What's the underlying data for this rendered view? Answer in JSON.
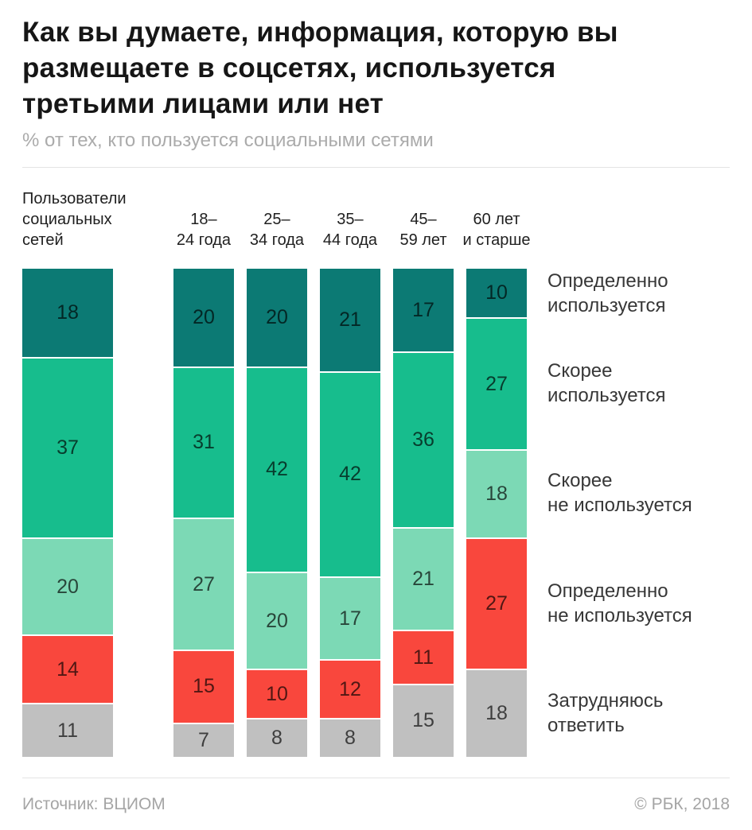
{
  "header": {
    "title": "Как вы думаете, информация, которую вы\nразмещаете в соцсетях, используется\nтретьими лицами или нет",
    "subtitle": "% от тех, кто пользуется социальными сетями"
  },
  "columns": {
    "first_header": "Пользователи\nсоциальных\nсетей",
    "age_headers": [
      "18–\n24 года",
      "25–\n34 года",
      "35–\n44 года",
      "45–\n59 лет",
      "60 лет\nи старше"
    ]
  },
  "legend": {
    "labels": [
      "Определенно\nиспользуется",
      "Скорее\nиспользуется",
      "Скорее\nне используется",
      "Определенно\nне используется",
      "Затрудняюсь\nответить"
    ]
  },
  "chart_data": {
    "type": "bar",
    "stacked": true,
    "orientation": "vertical",
    "unit": "%",
    "title": "Как вы думаете, информация, которую вы размещаете в соцсетях, используется третьими лицами или нет",
    "subtitle": "% от тех, кто пользуется социальными сетями",
    "categories": [
      "Пользователи социальных сетей",
      "18–24 года",
      "25–34 года",
      "35–44 года",
      "45–59 лет",
      "60 лет и старше"
    ],
    "series": [
      {
        "name": "Определенно используется",
        "color": "#0c7a74",
        "values": [
          18,
          20,
          20,
          21,
          17,
          10
        ]
      },
      {
        "name": "Скорее используется",
        "color": "#17bd8d",
        "values": [
          37,
          31,
          42,
          42,
          36,
          27
        ]
      },
      {
        "name": "Скорее не используется",
        "color": "#7cd9b5",
        "values": [
          20,
          27,
          20,
          17,
          21,
          18
        ]
      },
      {
        "name": "Определенно не используется",
        "color": "#f9473d",
        "values": [
          14,
          15,
          10,
          12,
          11,
          27
        ]
      },
      {
        "name": "Затрудняюсь ответить",
        "color": "#c0c0c0",
        "values": [
          11,
          7,
          8,
          8,
          15,
          18
        ]
      }
    ],
    "ylim": [
      0,
      100
    ],
    "grid": false,
    "legend_position": "right",
    "value_labels": "inside-center"
  },
  "footer": {
    "source": "Источник: ВЦИОМ",
    "copyright": "© РБК, 2018"
  }
}
